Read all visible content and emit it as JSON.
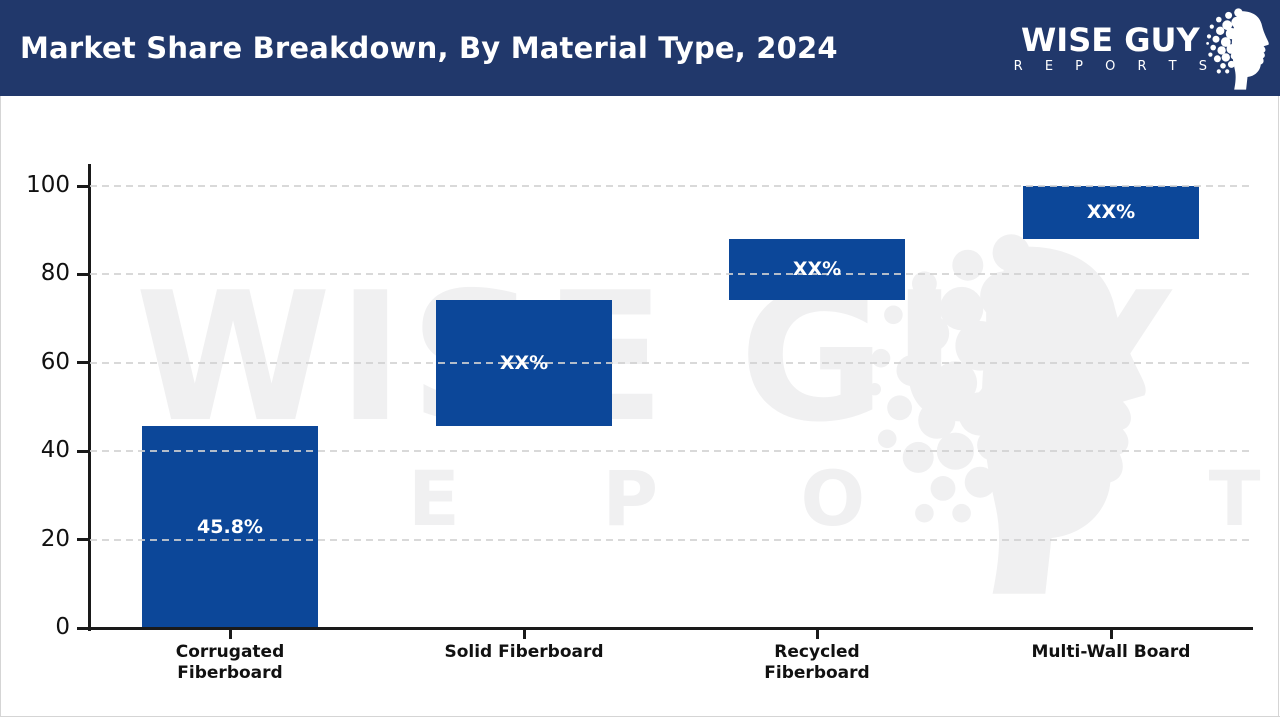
{
  "header": {
    "title": "Market Share Breakdown, By Material Type, 2024",
    "bg_color": "#21386b",
    "logo": {
      "line1": "WISE GUY",
      "line2": "R E P O R T S"
    }
  },
  "watermark": {
    "line1": "WISE GUY",
    "line2": "R E P O R T S"
  },
  "chart_data": {
    "type": "bar",
    "subtype": "waterfall",
    "title": "Market Share Breakdown, By Material Type, 2024",
    "xlabel": "",
    "ylabel": "",
    "categories": [
      "Corrugated Fiberboard",
      "Solid Fiberboard",
      "Recycled Fiberboard",
      "Multi-Wall Board"
    ],
    "category_display_lines": [
      "Corrugated\nFiberboard",
      "Solid Fiberboard",
      "Recycled\nFiberboard",
      "Multi-Wall Board"
    ],
    "bars": [
      {
        "category": "Corrugated Fiberboard",
        "base": 0,
        "top": 45.8,
        "value": 45.8,
        "label": "45.8%"
      },
      {
        "category": "Solid Fiberboard",
        "base": 45.8,
        "top": 74.3,
        "value": 28.5,
        "label": "XX%"
      },
      {
        "category": "Recycled Fiberboard",
        "base": 74.3,
        "top": 88.1,
        "value": 13.8,
        "label": "XX%"
      },
      {
        "category": "Multi-Wall Board",
        "base": 88.1,
        "top": 100.0,
        "value": 11.9,
        "label": "XX%"
      }
    ],
    "yticks": [
      0,
      20,
      40,
      60,
      80,
      100
    ],
    "ylim": [
      0,
      105
    ],
    "grid": true,
    "grid_style": "dashed",
    "legend": "none",
    "bar_color": "#0c4799",
    "bar_label_color": "#ffffff",
    "axis_color": "#1a1a1a",
    "grid_color": "#d2d2d2"
  }
}
